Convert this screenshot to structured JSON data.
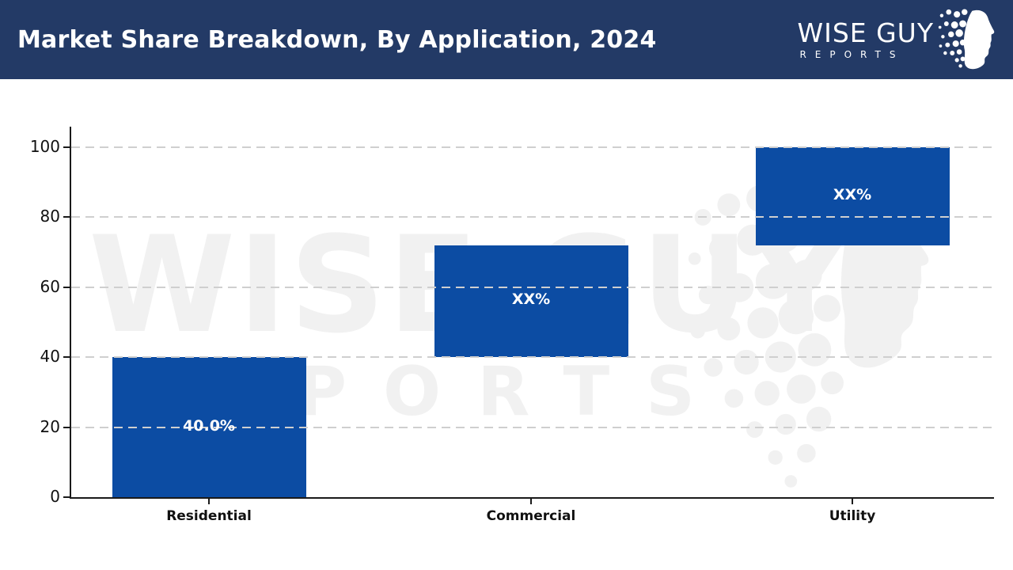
{
  "header": {
    "title": "Market Share Breakdown, By Application, 2024",
    "logo": {
      "name": "WISE GUY",
      "subtitle": "REPORTS"
    }
  },
  "watermark": {
    "line1": "WISE GUY",
    "line2": "REPORTS"
  },
  "colors": {
    "header_bg": "#233a66",
    "bar": "#0c4ca3",
    "bar_label": "#ffffff",
    "axis": "#1a1a1a",
    "grid": "#cfcfcf",
    "watermark": "#f1f1f1"
  },
  "chart_data": {
    "type": "bar",
    "subtype": "waterfall-stacked",
    "title": "Market Share Breakdown, By Application, 2024",
    "categories": [
      "Residential",
      "Commercial",
      "Utility"
    ],
    "bars": [
      {
        "category": "Residential",
        "start": 0,
        "end": 40,
        "label": "40.0%"
      },
      {
        "category": "Commercial",
        "start": 40,
        "end": 72,
        "label": "XX%"
      },
      {
        "category": "Utility",
        "start": 72,
        "end": 100,
        "label": "XX%"
      }
    ],
    "y_ticks": [
      0,
      20,
      40,
      60,
      80,
      100
    ],
    "ylim": [
      0,
      105
    ],
    "xlabel": "",
    "ylabel": "",
    "grid": "horizontal-dashed",
    "legend": "none"
  }
}
